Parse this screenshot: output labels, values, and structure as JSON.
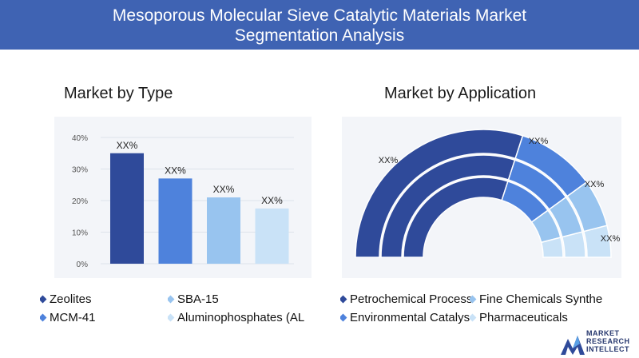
{
  "header": {
    "title_line1": "Mesoporous Molecular Sieve Catalytic Materials Market",
    "title_line2": "Segmentation Analysis",
    "background": "#3f63b3"
  },
  "chart_data": [
    {
      "type": "bar",
      "title": "Market by Type",
      "categories": [
        "Zeolites",
        "MCM-41",
        "SBA-15",
        "Aluminophosphates (AL"
      ],
      "values": [
        35,
        27,
        21,
        17.5
      ],
      "data_labels": [
        "XX%",
        "XX%",
        "XX%",
        "XX%"
      ],
      "colors": [
        "#2f4a9a",
        "#4e82dc",
        "#98c4ef",
        "#c9e2f7"
      ],
      "ylim": [
        0,
        40
      ],
      "yticks": [
        "0%",
        "10%",
        "20%",
        "30%",
        "40%"
      ],
      "grid": true
    },
    {
      "type": "pie",
      "title": "Market by Application",
      "categories": [
        "Petrochemical Process",
        "Environmental Catalys",
        "Fine Chemicals Synthe",
        "Pharmaceuticals"
      ],
      "values": [
        60,
        20,
        12,
        8
      ],
      "data_labels": [
        "XX%",
        "XX%",
        "XX%",
        "XX%"
      ],
      "colors": [
        "#2f4a9a",
        "#4e82dc",
        "#98c4ef",
        "#c9e2f7"
      ],
      "style": "semicircle-rings"
    }
  ],
  "legend_type": [
    {
      "label": "Zeolites",
      "color": "#2f4a9a"
    },
    {
      "label": "SBA-15",
      "color": "#98c4ef"
    },
    {
      "label": "MCM-41",
      "color": "#4e82dc"
    },
    {
      "label": "Aluminophosphates (AL",
      "color": "#c9e2f7"
    }
  ],
  "legend_app": [
    {
      "label": "Petrochemical Process",
      "color": "#2f4a9a"
    },
    {
      "label": "Fine Chemicals Synthe",
      "color": "#98c4ef"
    },
    {
      "label": "Environmental Catalys",
      "color": "#4e82dc"
    },
    {
      "label": "Pharmaceuticals",
      "color": "#c9e2f7"
    }
  ],
  "logo": {
    "line1": "MARKET",
    "line2": "RESEARCH",
    "line3": "INTELLECT"
  }
}
